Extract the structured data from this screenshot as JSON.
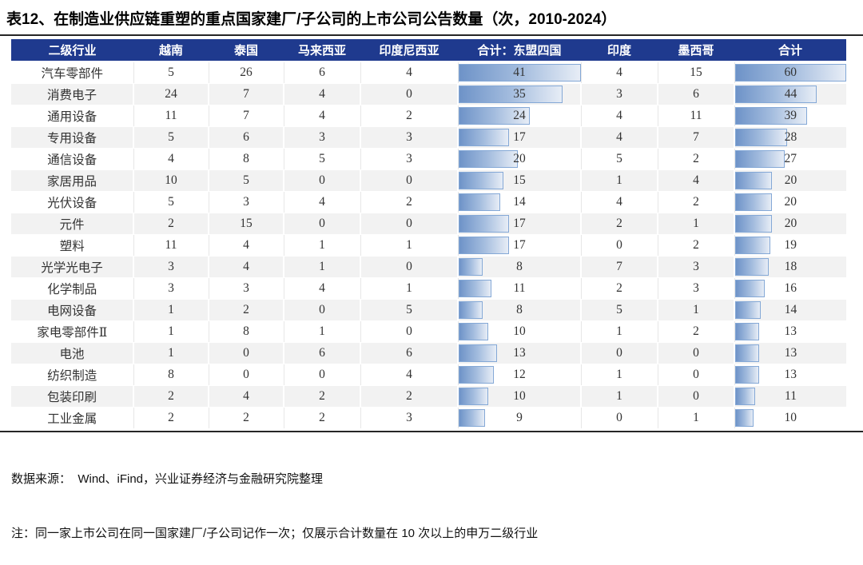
{
  "title": "表12、在制造业供应链重塑的重点国家建厂/子公司的上市公司公告数量（次，2010-2024）",
  "footer": {
    "source": "数据来源：  Wind、iFind，兴业证券经济与金融研究院整理",
    "note": "注：同一家上市公司在同一国家建厂/子公司记作一次；仅展示合计数量在 10 次以上的申万二级行业"
  },
  "colors": {
    "header_bg": "#1f3a8e",
    "row_alt_bg": "#f2f2f2",
    "bar_gradient_start": "#6e93c8",
    "bar_gradient_end": "#e7edf6",
    "bar_border": "#84a8d6",
    "rule": "#262626",
    "header_text": "#ffffff",
    "body_text": "#333333"
  },
  "chart_data": {
    "type": "table",
    "title": "表12、在制造业供应链重塑的重点国家建厂/子公司的上市公司公告数量（次，2010-2024）",
    "columns": [
      "二级行业",
      "越南",
      "泰国",
      "马来西亚",
      "印度尼西亚",
      "合计：东盟四国",
      "印度",
      "墨西哥",
      "合计"
    ],
    "bar_column_indices": [
      5,
      8
    ],
    "bar_style": "in-cell horizontal bars scaled to column max, value label centered",
    "rows": [
      [
        "汽车零部件",
        5,
        26,
        6,
        4,
        41,
        4,
        15,
        60
      ],
      [
        "消费电子",
        24,
        7,
        4,
        0,
        35,
        3,
        6,
        44
      ],
      [
        "通用设备",
        11,
        7,
        4,
        2,
        24,
        4,
        11,
        39
      ],
      [
        "专用设备",
        5,
        6,
        3,
        3,
        17,
        4,
        7,
        28
      ],
      [
        "通信设备",
        4,
        8,
        5,
        3,
        20,
        5,
        2,
        27
      ],
      [
        "家居用品",
        10,
        5,
        0,
        0,
        15,
        1,
        4,
        20
      ],
      [
        "光伏设备",
        5,
        3,
        4,
        2,
        14,
        4,
        2,
        20
      ],
      [
        "元件",
        2,
        15,
        0,
        0,
        17,
        2,
        1,
        20
      ],
      [
        "塑料",
        11,
        4,
        1,
        1,
        17,
        0,
        2,
        19
      ],
      [
        "光学光电子",
        3,
        4,
        1,
        0,
        8,
        7,
        3,
        18
      ],
      [
        "化学制品",
        3,
        3,
        4,
        1,
        11,
        2,
        3,
        16
      ],
      [
        "电网设备",
        1,
        2,
        0,
        5,
        8,
        5,
        1,
        14
      ],
      [
        "家电零部件Ⅱ",
        1,
        8,
        1,
        0,
        10,
        1,
        2,
        13
      ],
      [
        "电池",
        1,
        0,
        6,
        6,
        13,
        0,
        0,
        13
      ],
      [
        "纺织制造",
        8,
        0,
        0,
        4,
        12,
        1,
        0,
        13
      ],
      [
        "包装印刷",
        2,
        4,
        2,
        2,
        10,
        1,
        0,
        11
      ],
      [
        "工业金属",
        2,
        2,
        2,
        3,
        9,
        0,
        1,
        10
      ]
    ]
  }
}
